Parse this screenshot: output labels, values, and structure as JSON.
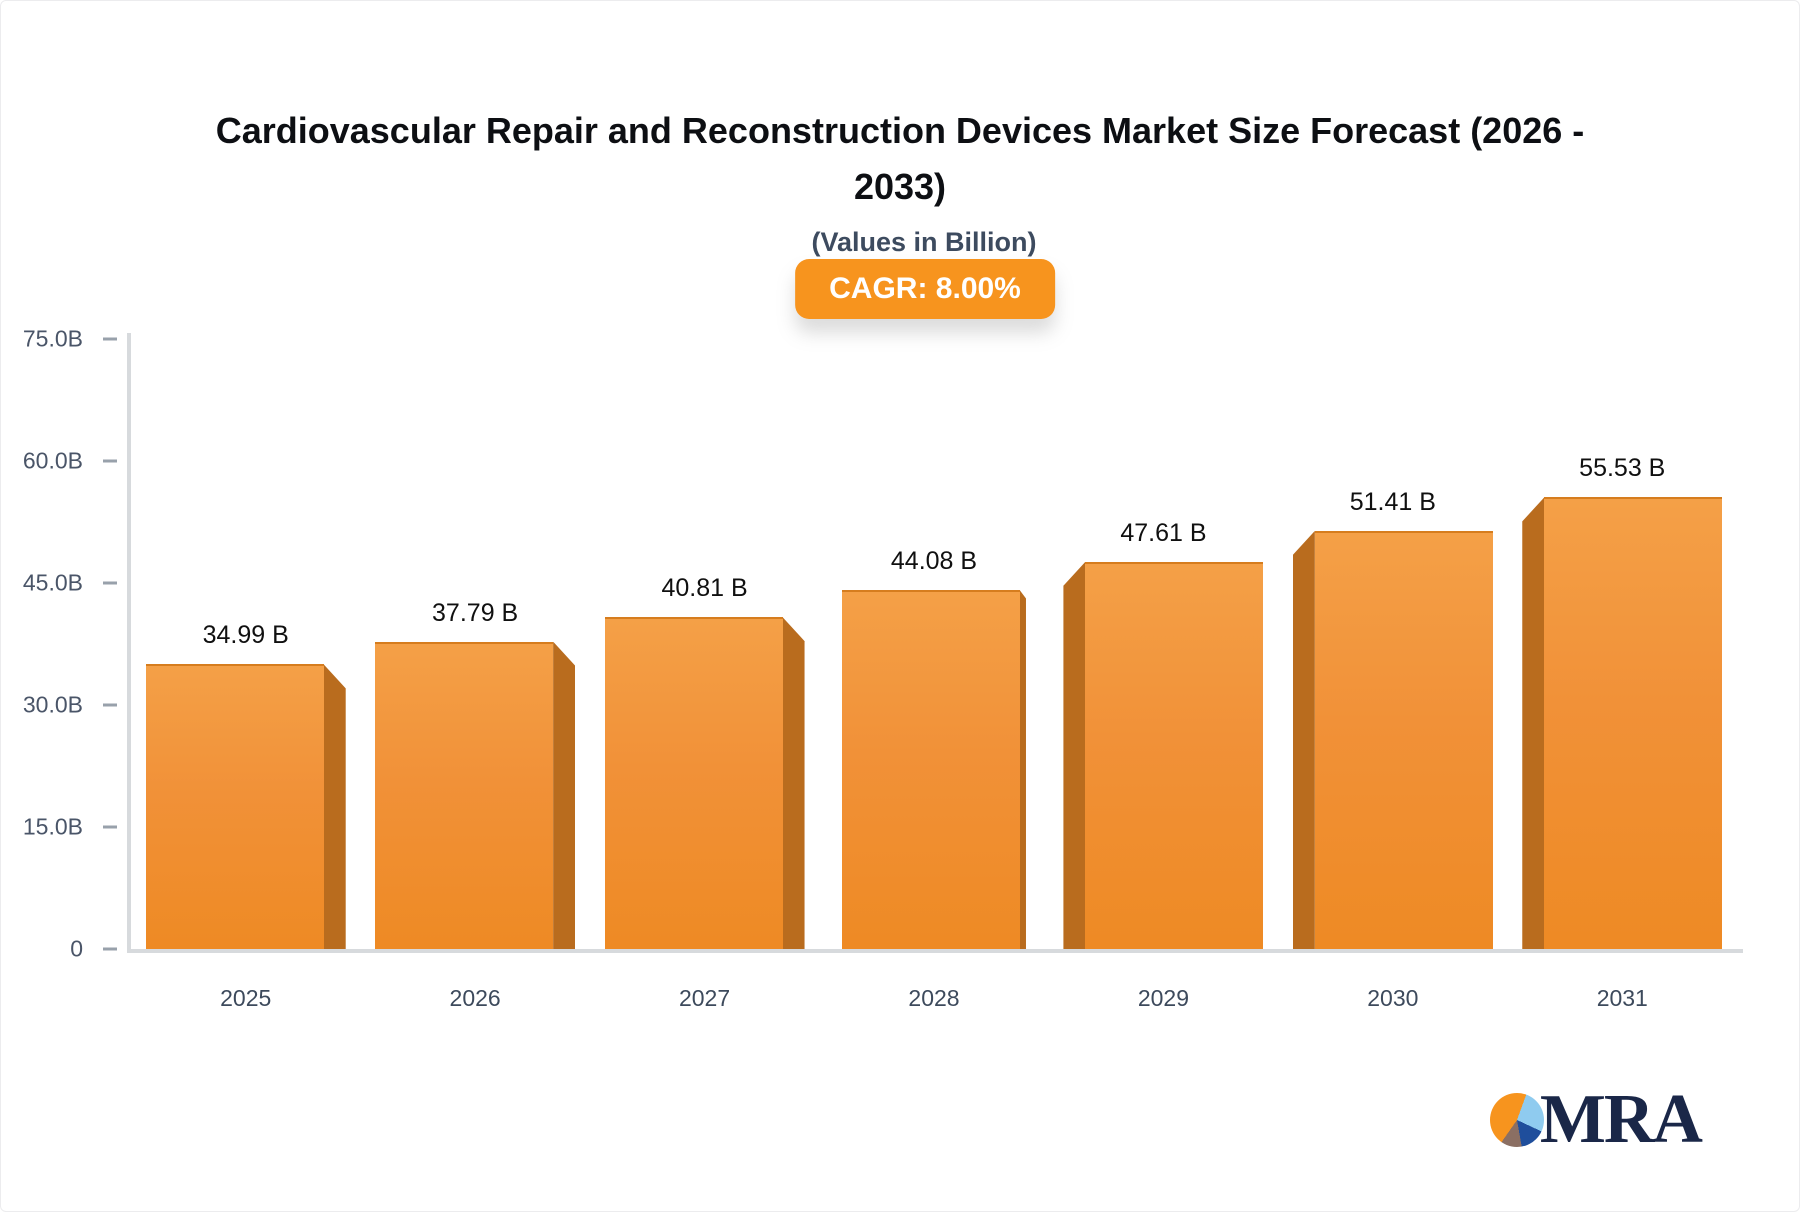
{
  "page": {
    "title_line1": "Cardiovascular Repair and Reconstruction Devices Market Size Forecast (2026 -",
    "title_line2": "2033)",
    "subtitle": "(Values in Billion)",
    "cagr_badge": "CAGR: 8.00%",
    "logo_text": "MRA"
  },
  "colors": {
    "accent_orange": "#F7941E",
    "bar_face_top": "#F4A047",
    "bar_face_bottom": "#EE8A24",
    "bar_side": "#B96C1E",
    "axis_line": "#D7DADD",
    "tick_mark": "#98A1AB",
    "axis_text": "#4A5568",
    "xlabel_text": "#3D4A5C",
    "title_text": "#0D0F13",
    "subtitle_text": "#3D4B5F",
    "badge_text": "#FFFFFF",
    "value_text": "#101010",
    "logo_navy": "#1A2748",
    "logo_lightblue": "#8FCBEF",
    "logo_blue": "#1F4E9C",
    "logo_brown": "#8B6F63"
  },
  "chart_data": {
    "type": "bar",
    "title": "Cardiovascular Repair and Reconstruction Devices Market Size Forecast (2026 - 2033)",
    "subtitle": "(Values in Billion)",
    "annotation": "CAGR: 8.00%",
    "categories": [
      "2025",
      "2026",
      "2027",
      "2028",
      "2029",
      "2030",
      "2031"
    ],
    "values": [
      34.99,
      37.79,
      40.81,
      44.08,
      47.61,
      51.41,
      55.53
    ],
    "value_labels": [
      "34.99 B",
      "37.79 B",
      "40.81 B",
      "44.08 B",
      "47.61 B",
      "51.41 B",
      "55.53 B"
    ],
    "unit": "Billion",
    "xlabel": "",
    "ylabel": "",
    "ylim": [
      0,
      75
    ],
    "yticks": [
      {
        "value": 75,
        "label": "75.0B"
      },
      {
        "value": 60,
        "label": "60.0B"
      },
      {
        "value": 45,
        "label": "45.0B"
      },
      {
        "value": 30,
        "label": "30.0B"
      },
      {
        "value": 15,
        "label": "15.0B"
      },
      {
        "value": 0,
        "label": "0"
      }
    ],
    "grid": false,
    "legend": false,
    "bar_style": "3d-bevel"
  }
}
